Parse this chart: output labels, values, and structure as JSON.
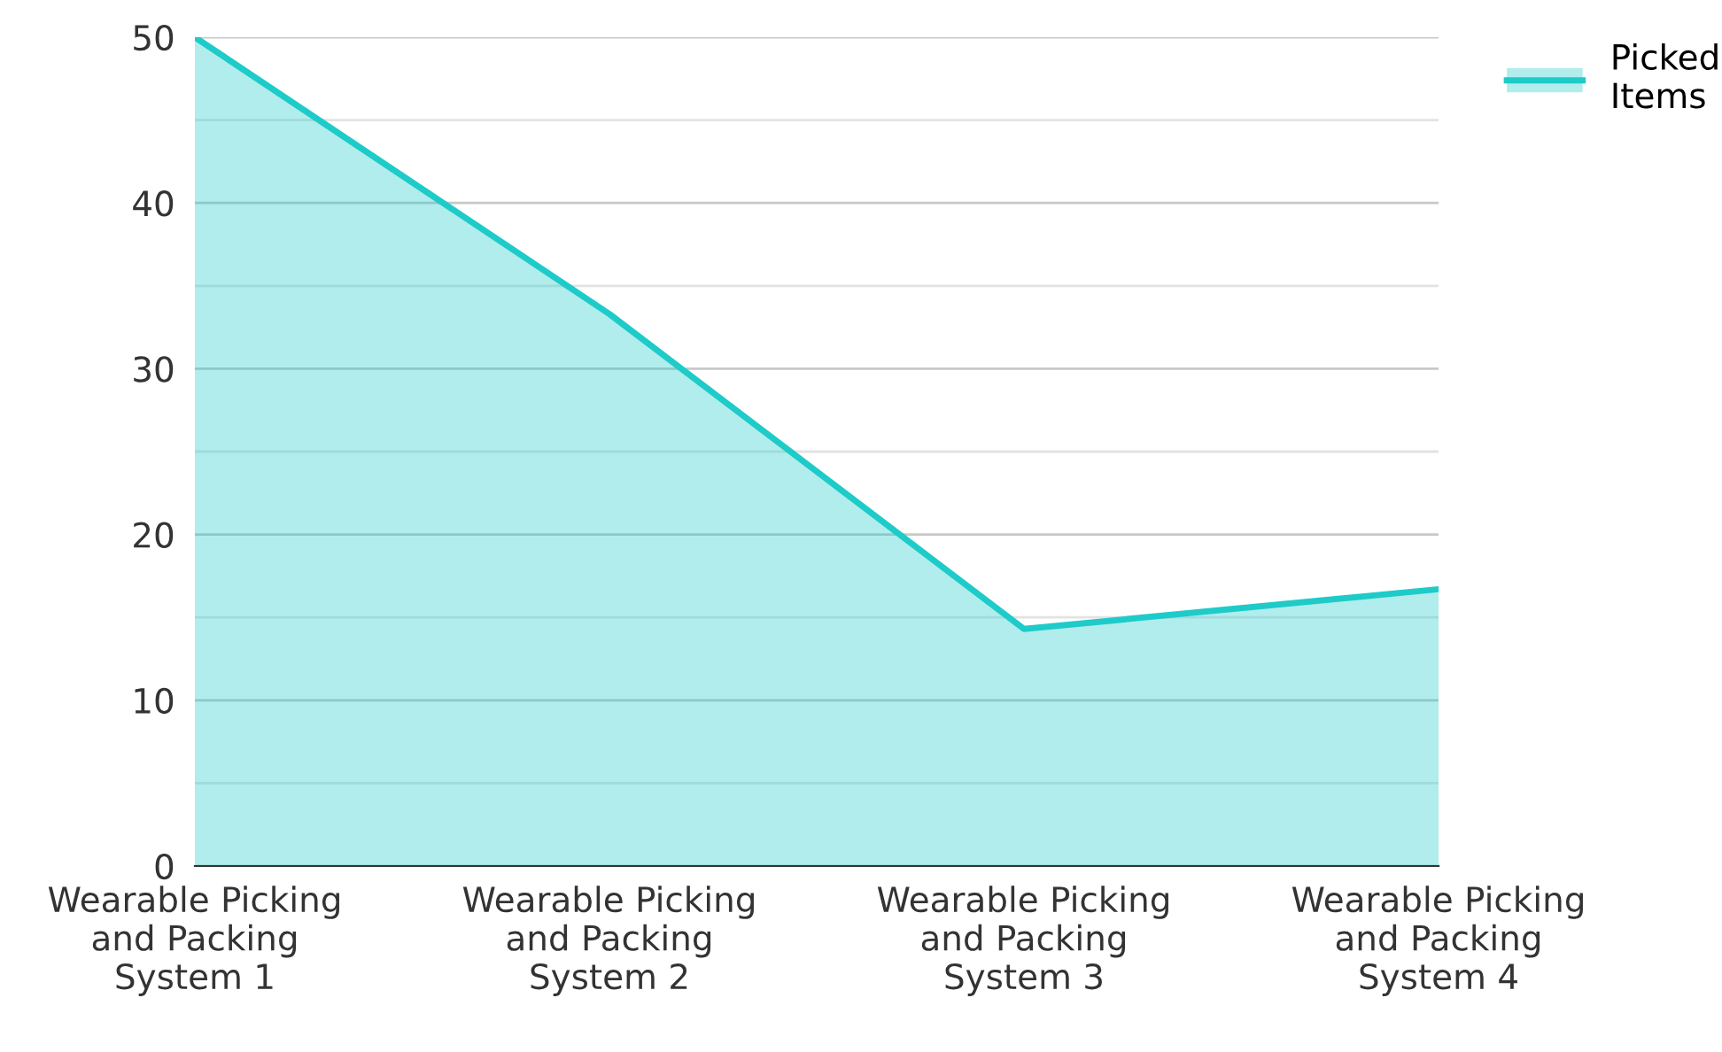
{
  "chart_data": {
    "type": "area",
    "categories": [
      "Wearable Picking and Packing System 1",
      "Wearable Picking and Packing System 2",
      "Wearable Picking and Packing System 3",
      "Wearable Picking and Packing System 4"
    ],
    "series": [
      {
        "name": "Picked Items",
        "color": "#1ecbc9",
        "values": [
          50,
          33.3,
          14.3,
          16.7
        ]
      }
    ],
    "ylim": [
      0,
      50
    ],
    "yticks": [
      0,
      {
        "value": 5,
        "label": null
      },
      10,
      {
        "value": 15,
        "label": null
      },
      20,
      {
        "value": 25,
        "label": null
      },
      30,
      {
        "value": 35,
        "label": null
      },
      40,
      {
        "value": 45,
        "label": null
      },
      50
    ],
    "grid": "y",
    "legend": "top right"
  }
}
